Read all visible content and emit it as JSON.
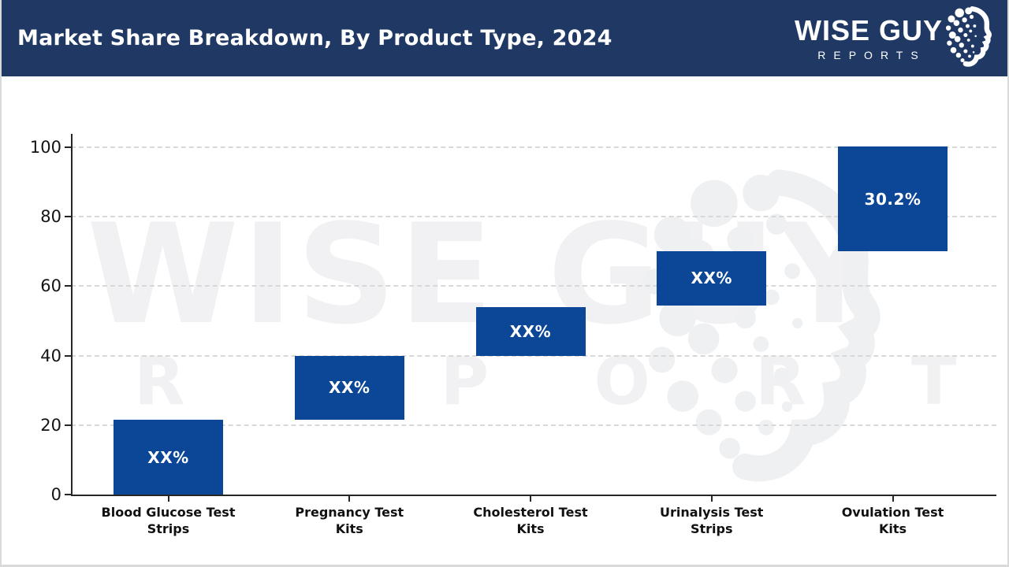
{
  "header": {
    "logo_line1": "WISE GUY",
    "logo_line2": "REPORTS",
    "bg_color": "#203864"
  },
  "watermark": {
    "line1": "WISE GUY",
    "line2": "R E P O R T S"
  },
  "chart_data": {
    "type": "bar",
    "subtype": "floating-waterfall",
    "title": "Market Share Breakdown, By Product Type, 2024",
    "categories": [
      "Blood Glucose Test Strips",
      "Pregnancy Test Kits",
      "Cholesterol Test Kits",
      "Urinalysis Test Strips",
      "Ovulation Test Kits"
    ],
    "category_lines": [
      [
        "Blood Glucose Test",
        "Strips"
      ],
      [
        "Pregnancy Test",
        "Kits"
      ],
      [
        "Cholesterol Test",
        "Kits"
      ],
      [
        "Urinalysis Test",
        "Strips"
      ],
      [
        "Ovulation Test",
        "Kits"
      ]
    ],
    "bars": [
      {
        "category": "Blood Glucose Test Strips",
        "start": 0,
        "end": 21.5,
        "value_label": "XX%"
      },
      {
        "category": "Pregnancy Test Kits",
        "start": 21.5,
        "end": 40,
        "value_label": "XX%"
      },
      {
        "category": "Cholesterol Test Kits",
        "start": 40,
        "end": 54,
        "value_label": "XX%"
      },
      {
        "category": "Urinalysis Test Strips",
        "start": 54.5,
        "end": 70,
        "value_label": "XX%"
      },
      {
        "category": "Ovulation Test Kits",
        "start": 70,
        "end": 100.2,
        "value_label": "30.2%"
      }
    ],
    "only_disclosed_value": "30.2%",
    "ylim": [
      0,
      100
    ],
    "yticks": [
      0,
      20,
      40,
      60,
      80,
      100
    ],
    "xlabel": "",
    "ylabel": "",
    "grid": true,
    "grid_style": "dashed",
    "legend": "none",
    "bar_color": "#0b4697",
    "axis_color": "#262626",
    "grid_color": "#d8d8d8"
  }
}
